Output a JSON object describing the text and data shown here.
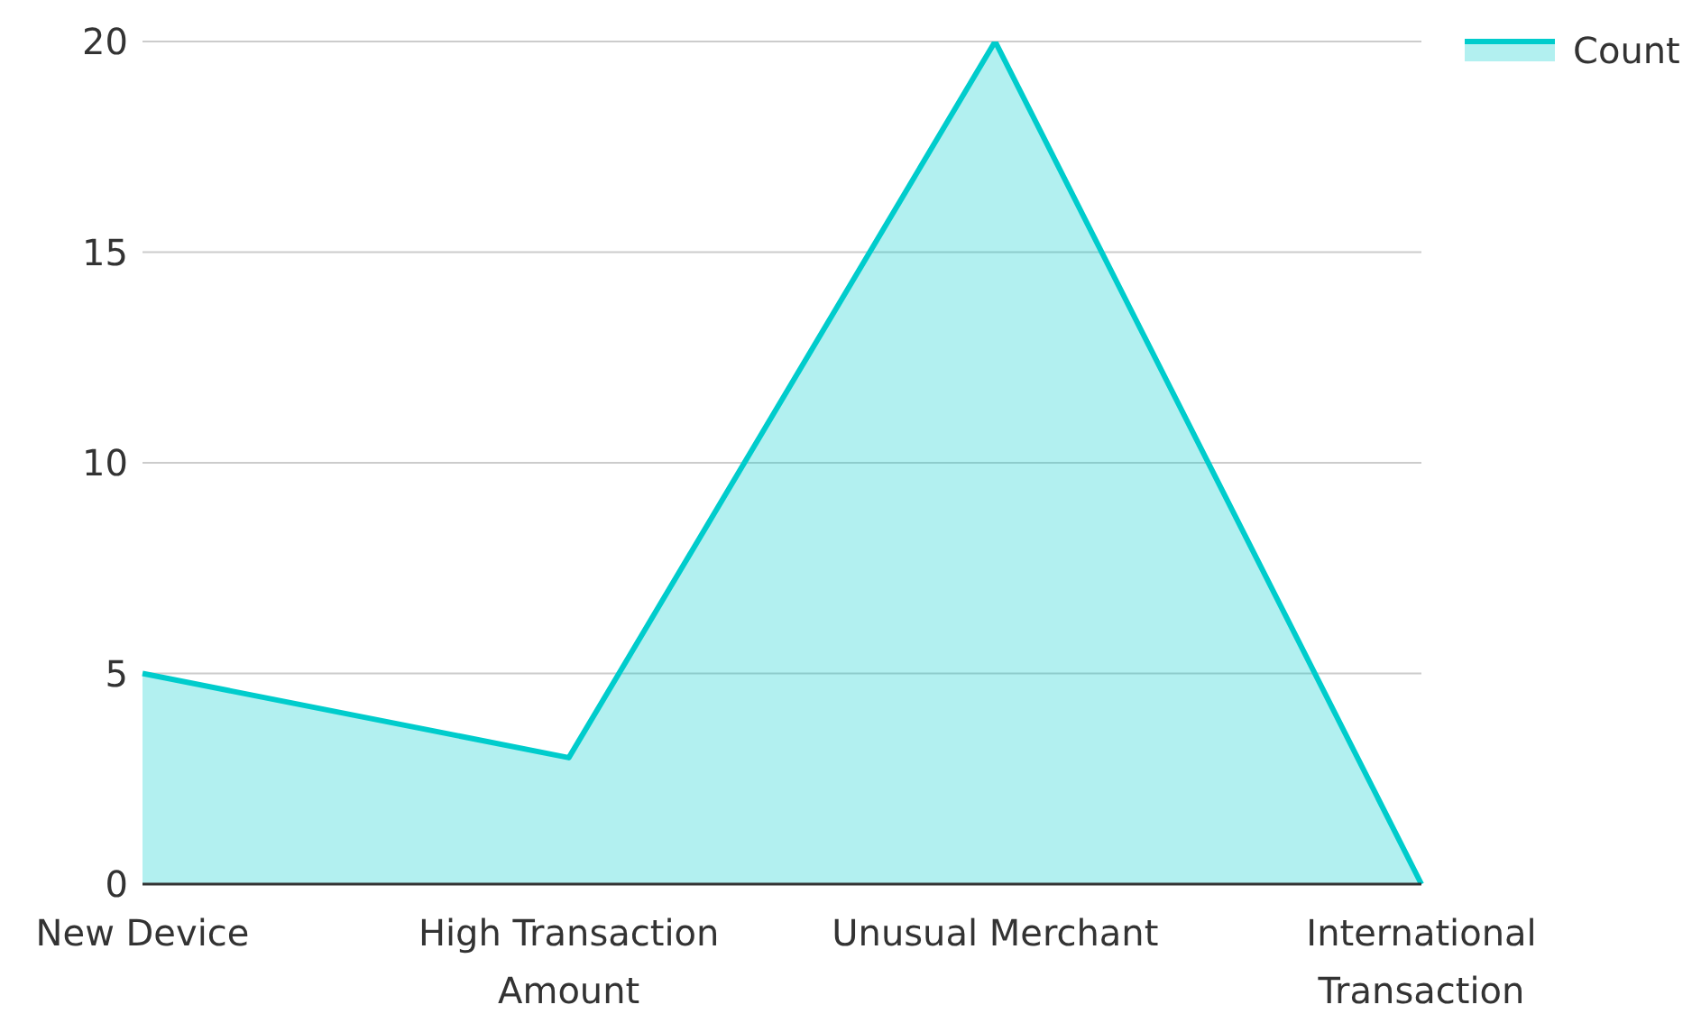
{
  "chart_data": {
    "type": "area",
    "categories": [
      "New Device",
      "High Transaction Amount",
      "Unusual Merchant",
      "International Transaction"
    ],
    "series": [
      {
        "name": "Count",
        "color": "#00cccc",
        "values": [
          5,
          3,
          20,
          0
        ]
      }
    ],
    "ylim": [
      0,
      20
    ],
    "yticks": [
      0,
      5,
      10,
      15,
      20
    ],
    "grid": "y",
    "legend": "top right",
    "marker": "none"
  }
}
